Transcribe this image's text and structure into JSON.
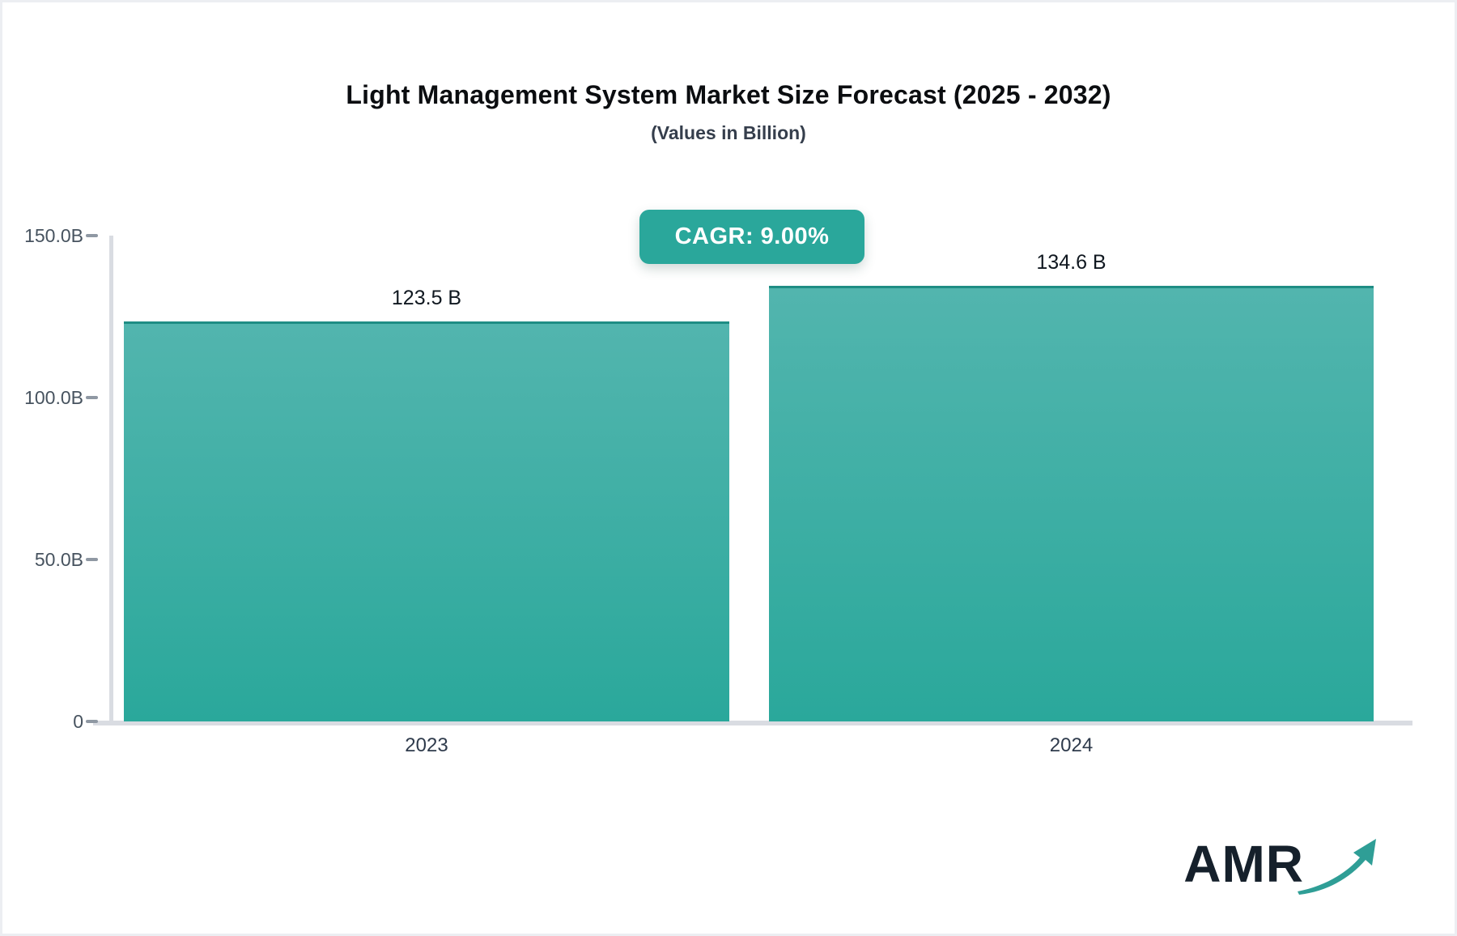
{
  "chart_data": {
    "type": "bar",
    "title": "Light Management System Market Size Forecast (2025 - 2032)",
    "subtitle": "(Values in Billion)",
    "cagr_label": "CAGR: 9.00%",
    "categories": [
      "2023",
      "2024"
    ],
    "values": [
      123.5,
      134.6
    ],
    "value_labels": [
      "123.5 B",
      "134.6 B"
    ],
    "ylim": [
      0,
      150
    ],
    "yticks": [
      {
        "label": "150.0B",
        "value": 150
      },
      {
        "label": "100.0B",
        "value": 100
      },
      {
        "label": "50.0B",
        "value": 50
      },
      {
        "label": "0",
        "value": 0
      }
    ],
    "grid": false,
    "legend": false,
    "colors": {
      "bar_gradient_top": "#52b5ae",
      "bar_gradient_bottom": "#2aa89b",
      "bar_top_edge": "#1f8d84",
      "badge_background": "#2aa79b",
      "badge_text": "#ffffff",
      "axis_line": "#d9dce2",
      "tick_text": "#47535f",
      "category_text": "#2f3b4c",
      "value_label_text": "#101820"
    }
  },
  "logo": {
    "text": "AMR",
    "text_color": "#15202b",
    "arrow_color": "#2f9e96"
  }
}
